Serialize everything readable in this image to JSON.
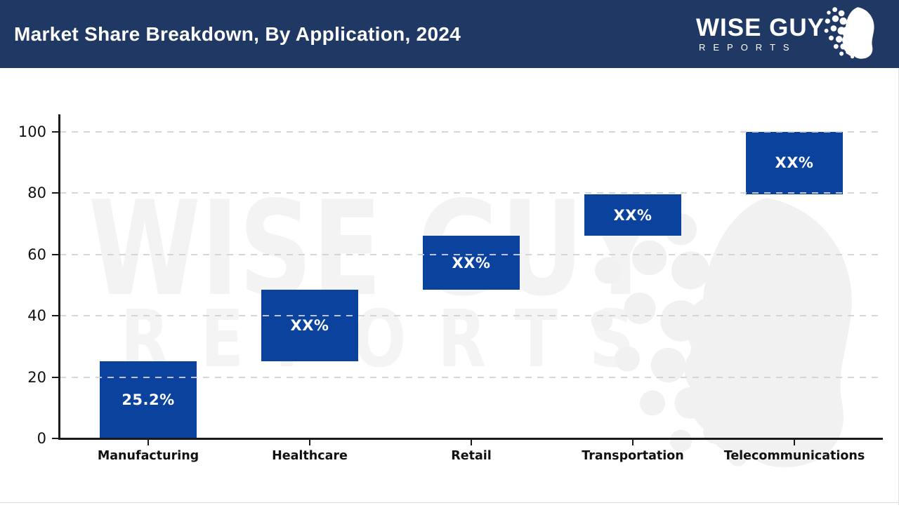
{
  "header": {
    "title": "Market Share Breakdown, By Application, 2024",
    "logo": {
      "line1": "WISE GUY",
      "line2": "REPORTS"
    }
  },
  "watermark": {
    "line1": "WISE GUY",
    "line2": "REPORTS"
  },
  "chart_data": {
    "type": "bar",
    "subtype": "waterfall",
    "title": "Market Share Breakdown, By Application, 2024",
    "categories": [
      "Manufacturing",
      "Healthcare",
      "Retail",
      "Transportation",
      "Telecommunications"
    ],
    "segments": [
      [
        0,
        25.2
      ],
      [
        25.2,
        48.4
      ],
      [
        48.4,
        66.1
      ],
      [
        66.1,
        79.5
      ],
      [
        79.5,
        100
      ]
    ],
    "values": [
      25.2,
      23.2,
      17.7,
      13.4,
      20.5
    ],
    "bar_labels": [
      "25.2%",
      "XX%",
      "XX%",
      "XX%",
      "XX%"
    ],
    "xlabel": "",
    "ylabel": "",
    "ylim": [
      0,
      100
    ],
    "yticks": [
      0,
      20,
      40,
      60,
      80,
      100
    ],
    "legend": "none",
    "grid": "horizontal-dashed-over-bars",
    "bar_color": "#0a429e"
  },
  "colors": {
    "header_bg": "#1f3864",
    "bar": "#0a429e",
    "grid": "#d6d6d6",
    "axis": "#1a1a1a",
    "bar_label_text": "#ffffff",
    "watermark": "#f2f2f2"
  }
}
